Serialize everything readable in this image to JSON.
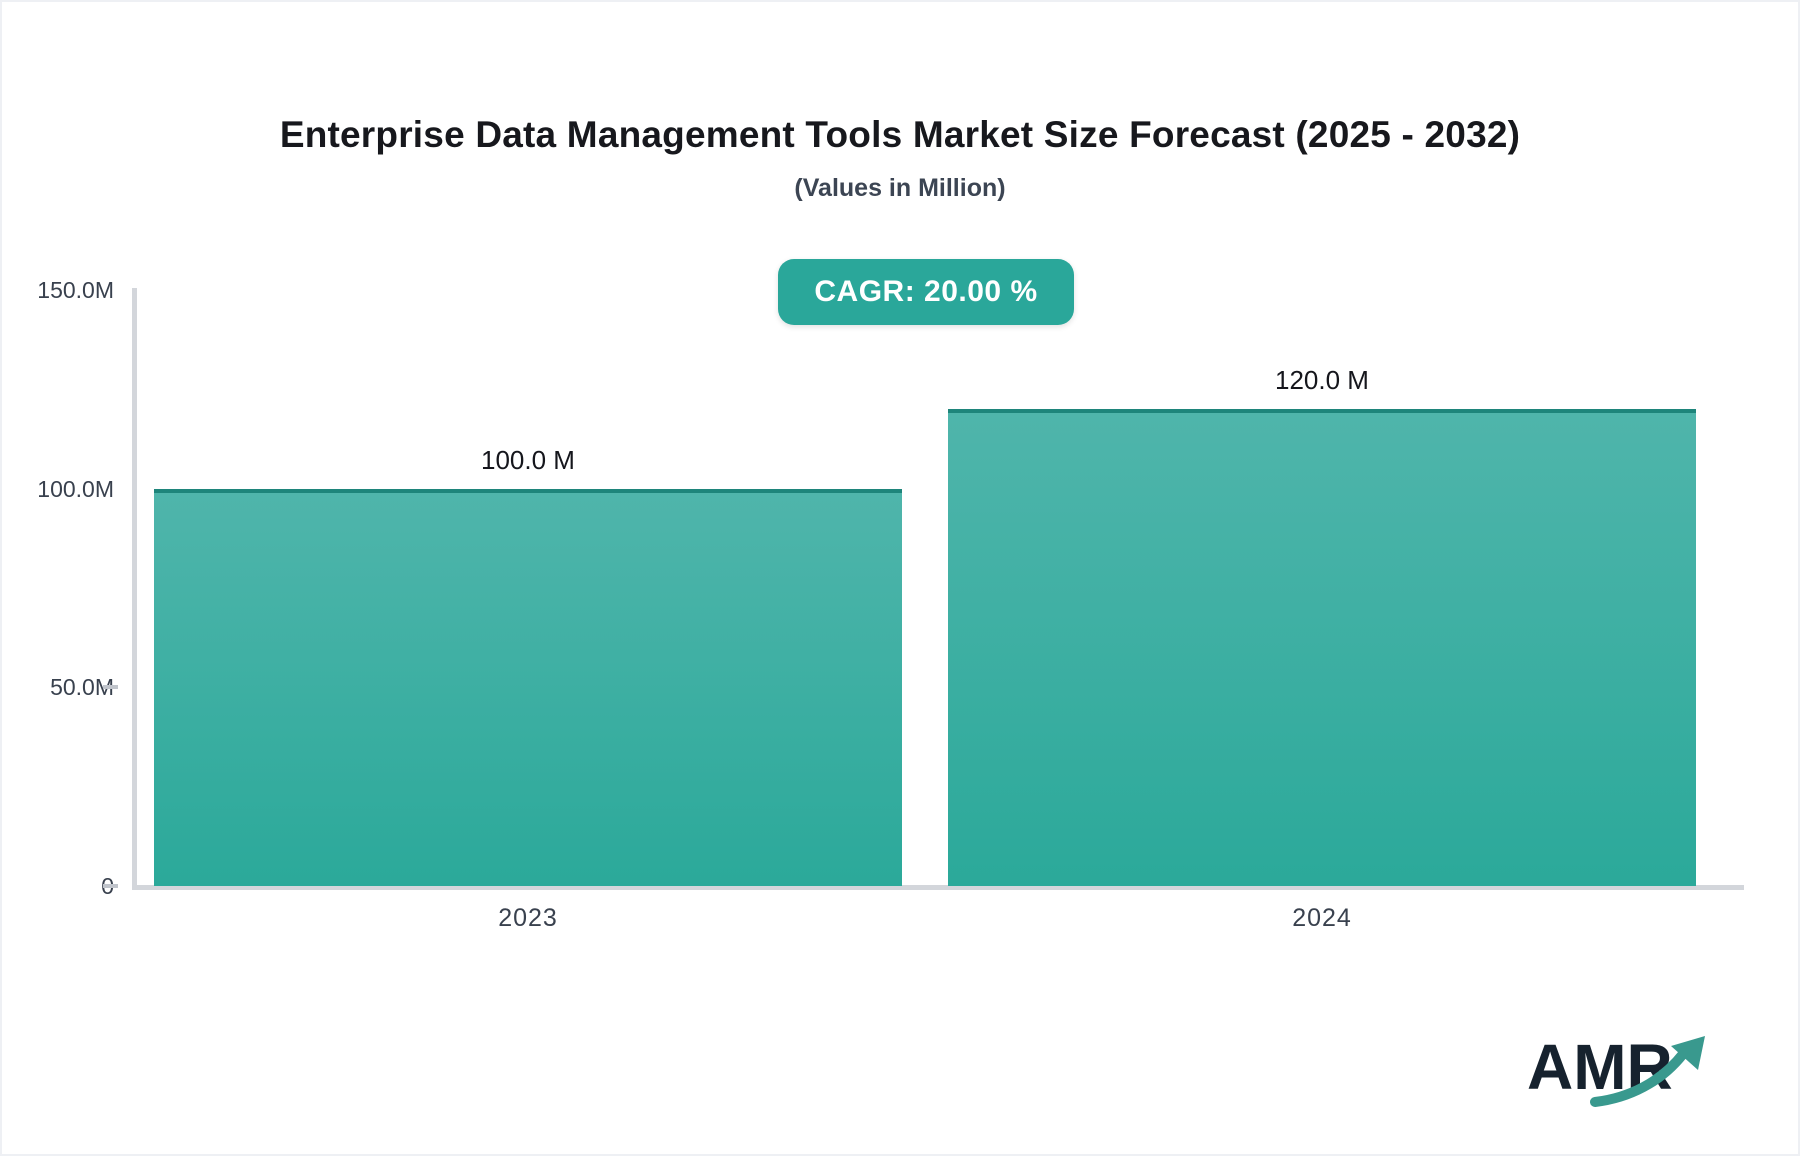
{
  "header": {
    "title": "Enterprise Data Management Tools Market Size Forecast (2025 - 2032)",
    "subtitle": "(Values in Million)"
  },
  "cagr_badge": {
    "label": "CAGR: 20.00 %"
  },
  "chart_data": {
    "type": "bar",
    "title": "Enterprise Data Management Tools Market Size Forecast (2025 - 2032)",
    "subtitle": "(Values in Million)",
    "unit": "Million",
    "categories": [
      "2023",
      "2024"
    ],
    "values": [
      100.0,
      120.0
    ],
    "bar_labels": [
      "100.0 M",
      "120.0 M"
    ],
    "cagr_percent": "20.00 %",
    "xlabel": "",
    "ylabel": "",
    "ylim": [
      0,
      150
    ],
    "yticks": [
      {
        "value": 150,
        "label": "150.0M",
        "tick": false
      },
      {
        "value": 100,
        "label": "100.0M",
        "tick": false
      },
      {
        "value": 50,
        "label": "50.0M",
        "tick": true
      },
      {
        "value": 0,
        "label": "0",
        "tick": true
      }
    ],
    "grid": false,
    "legend": false,
    "colors": {
      "bar_top": "#4fb5ab",
      "bar_bottom": "#2ba99a",
      "bar_border_top": "#1e857b",
      "axis_line": "#d3d6db",
      "tick_dash": "#c0c4cb",
      "badge_bg": "#2aa79a",
      "badge_text": "#ffffff"
    }
  },
  "logo": {
    "text": "AMR",
    "text_color": "#16222e",
    "arrow_color": "#39998e"
  }
}
